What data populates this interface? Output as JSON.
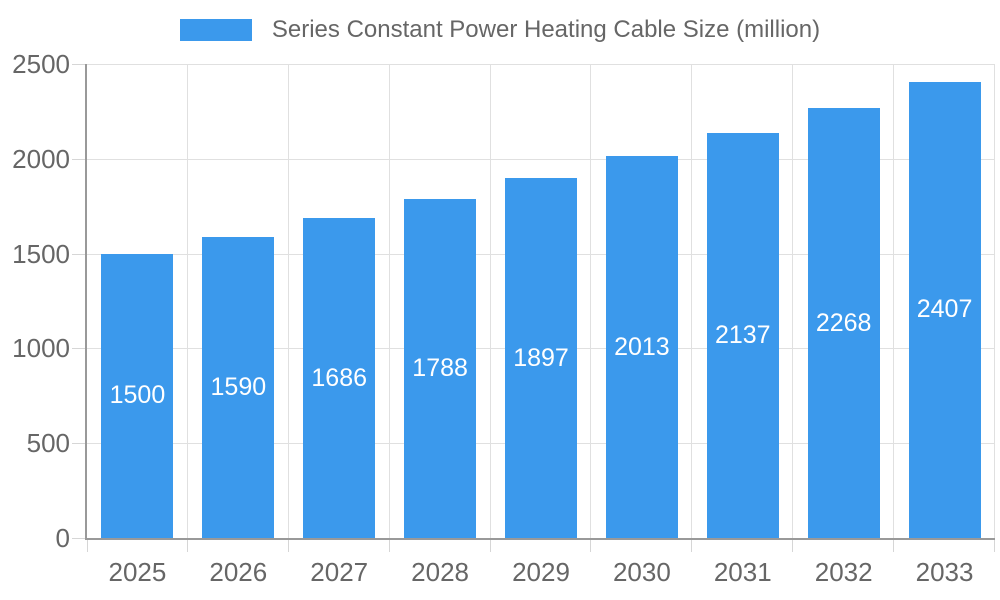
{
  "legend": {
    "label": "Series Constant Power Heating Cable Size (million)"
  },
  "chart_data": {
    "type": "bar",
    "title": "Series Constant Power Heating Cable Size (million)",
    "series_name": "Series Constant Power Heating Cable Size (million)",
    "categories": [
      "2025",
      "2026",
      "2027",
      "2028",
      "2029",
      "2030",
      "2031",
      "2032",
      "2033"
    ],
    "values": [
      1500,
      1590,
      1686,
      1788,
      1897,
      2013,
      2137,
      2268,
      2407
    ],
    "xlabel": "",
    "ylabel": "",
    "ylim": [
      0,
      2500
    ],
    "yticks": [
      0,
      500,
      1000,
      1500,
      2000,
      2500
    ],
    "grid": true,
    "legend_position": "top",
    "bar_value_labels_inside": true,
    "colors": {
      "bar": "#3b99ec",
      "bar_label_text": "#ffffff",
      "axis_text": "#666666",
      "grid_line": "#e0e0e0",
      "axis_line": "#999999"
    }
  }
}
